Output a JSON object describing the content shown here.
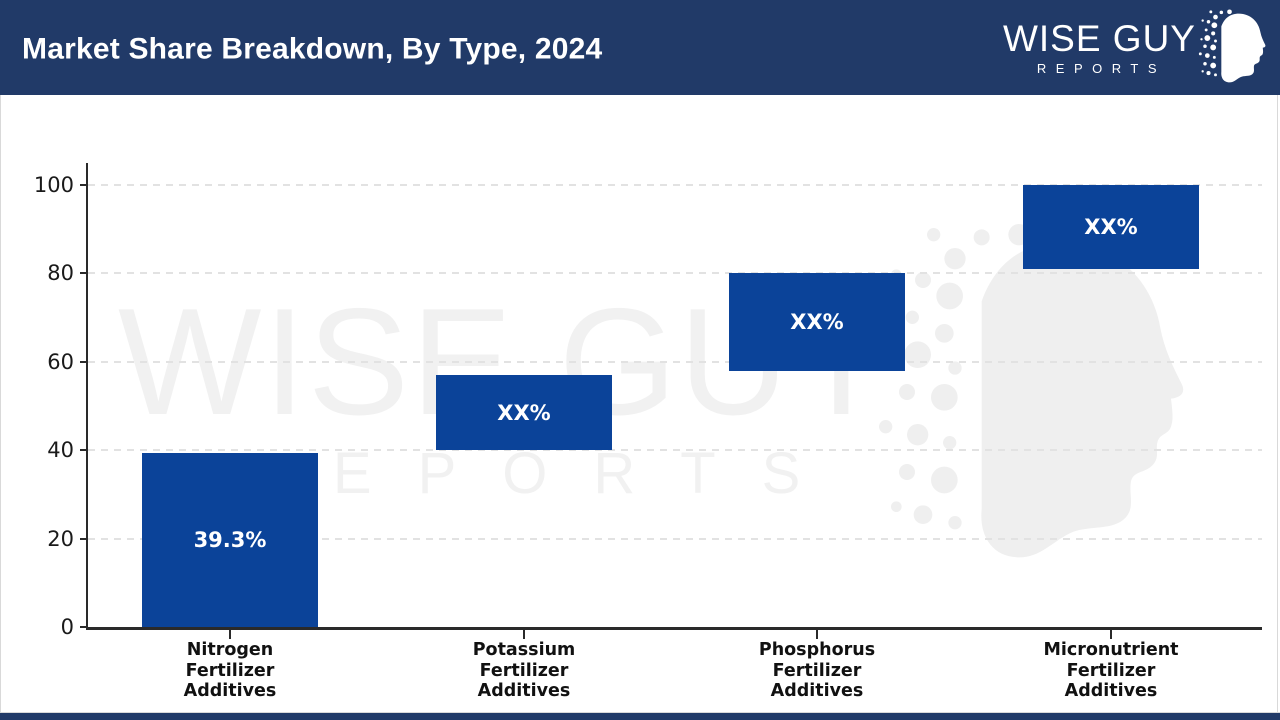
{
  "colors": {
    "header_bg": "#213a68",
    "bar_fill": "#0b4399",
    "bar_label": "#ffffff",
    "watermark": "#f1f1f1",
    "grid": "#e2e2e2",
    "axis": "#2a2a2a"
  },
  "header": {
    "title": "Market Share Breakdown, By Type, 2024",
    "logo": {
      "name": "WISE GUY",
      "sub": "REPORTS",
      "face_icon": "dotted-head-profile"
    }
  },
  "watermark": {
    "name": "WISE GUY",
    "sub": "REPORTS",
    "face_icon": "dotted-head-profile"
  },
  "chart_data": {
    "type": "bar",
    "variant": "waterfall",
    "title": "Market Share Breakdown, By Type, 2024",
    "xlabel": "",
    "ylabel": "",
    "ylim": [
      0,
      100
    ],
    "yticks": [
      0,
      20,
      40,
      60,
      80,
      100
    ],
    "grid": "horizontal-dashed",
    "legend": "none",
    "categories": [
      [
        "Nitrogen",
        "Fertilizer",
        "Additives"
      ],
      [
        "Potassium",
        "Fertilizer",
        "Additives"
      ],
      [
        "Phosphorus",
        "Fertilizer",
        "Additives"
      ],
      [
        "Micronutrient",
        "Fertilizer",
        "Additives"
      ]
    ],
    "bars": [
      {
        "category": "Nitrogen Fertilizer Additives",
        "start": 0,
        "end": 39.3,
        "label": "39.3%"
      },
      {
        "category": "Potassium Fertilizer Additives",
        "start": 40,
        "end": 57,
        "label": "XX%"
      },
      {
        "category": "Phosphorus Fertilizer Additives",
        "start": 58,
        "end": 80,
        "label": "XX%"
      },
      {
        "category": "Micronutrient Fertilizer Additives",
        "start": 81,
        "end": 100,
        "label": "XX%"
      }
    ]
  }
}
